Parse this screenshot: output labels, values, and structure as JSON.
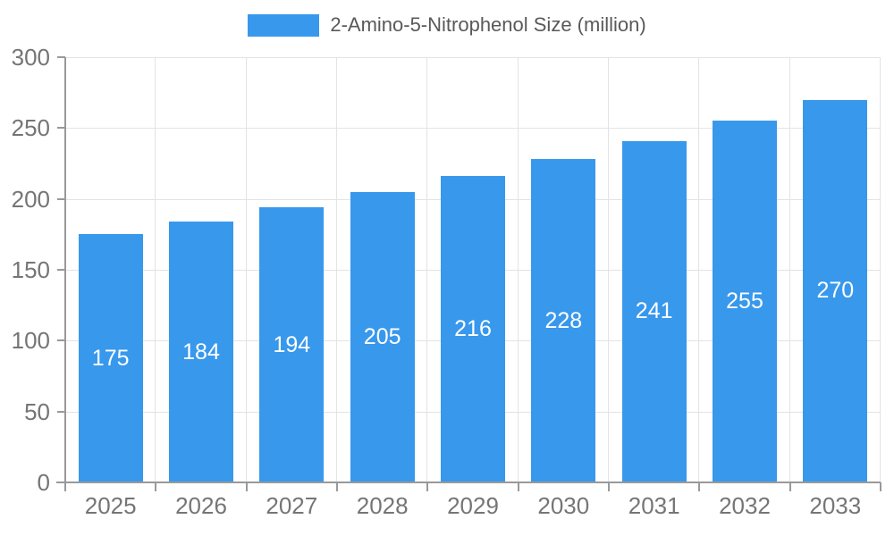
{
  "chart_data": {
    "type": "bar",
    "title": "",
    "legend": {
      "label": "2-Amino-5-Nitrophenol Size (million)",
      "position": "top"
    },
    "series_name": "2-Amino-5-Nitrophenol Size (million)",
    "categories": [
      "2025",
      "2026",
      "2027",
      "2028",
      "2029",
      "2030",
      "2031",
      "2032",
      "2033"
    ],
    "values": [
      175,
      184,
      194,
      205,
      216,
      228,
      241,
      255,
      270
    ],
    "xlabel": "",
    "ylabel": "",
    "ylim": [
      0,
      300
    ],
    "ytick_step": 50,
    "ytick_labels": [
      "0",
      "50",
      "100",
      "150",
      "200",
      "250",
      "300"
    ],
    "grid": true,
    "value_labels_inside_bars": true,
    "colors": {
      "bar": "#3898EC",
      "axis_line": "#999999",
      "gridline": "#E3E3E3",
      "tick_label": "#757575",
      "legend_text": "#595959",
      "value_label": "#FFFFFF",
      "background": "#FFFFFF"
    }
  }
}
